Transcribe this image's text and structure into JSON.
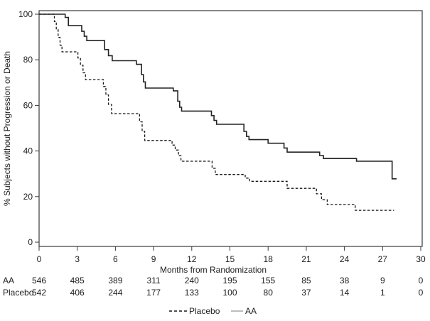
{
  "colors": {
    "aa_curve": "#232323",
    "placebo_curve": "#161616",
    "legend_solid_sample": "#a8a8a8",
    "frame": "#3a3a3a",
    "text": "#1d1d1d"
  },
  "legend": {
    "items": [
      {
        "label": "Placebo",
        "style": "dashed"
      },
      {
        "label": "AA",
        "style": "solid"
      }
    ]
  },
  "chart_data": {
    "type": "line",
    "subtype": "kaplan-meier-step",
    "title": "",
    "xlabel": "Months from Randomization",
    "ylabel": "% Subjects without Progression or Death",
    "xlim": [
      0,
      30
    ],
    "ylim": [
      0,
      100
    ],
    "x_ticks": [
      0,
      3,
      6,
      9,
      12,
      15,
      18,
      21,
      24,
      27,
      30
    ],
    "y_ticks": [
      0,
      20,
      40,
      60,
      80,
      100
    ],
    "grid": false,
    "legend_position": "bottom-center",
    "series": [
      {
        "name": "AA",
        "style": "solid",
        "end_month": 28.1,
        "steps": [
          [
            0,
            100
          ],
          [
            2.05,
            98.6
          ],
          [
            2.3,
            95.0
          ],
          [
            3.35,
            92.5
          ],
          [
            3.55,
            90.3
          ],
          [
            3.75,
            88.4
          ],
          [
            5.15,
            84.5
          ],
          [
            5.45,
            81.8
          ],
          [
            5.75,
            79.6
          ],
          [
            7.65,
            78.0
          ],
          [
            8.05,
            73.5
          ],
          [
            8.2,
            70.3
          ],
          [
            8.35,
            67.6
          ],
          [
            10.55,
            66.4
          ],
          [
            10.9,
            61.8
          ],
          [
            11.05,
            59.2
          ],
          [
            11.2,
            57.5
          ],
          [
            13.55,
            55.5
          ],
          [
            13.75,
            53.4
          ],
          [
            13.95,
            51.7
          ],
          [
            16.1,
            48.6
          ],
          [
            16.3,
            46.4
          ],
          [
            16.5,
            45.0
          ],
          [
            18.0,
            43.4
          ],
          [
            19.25,
            41.3
          ],
          [
            19.5,
            39.5
          ],
          [
            22.05,
            38.0
          ],
          [
            22.35,
            36.7
          ],
          [
            24.95,
            35.5
          ],
          [
            27.75,
            27.8
          ]
        ]
      },
      {
        "name": "Placebo",
        "style": "dashed",
        "end_month": 27.9,
        "steps": [
          [
            0,
            100
          ],
          [
            1.2,
            96.8
          ],
          [
            1.35,
            93.2
          ],
          [
            1.5,
            89.8
          ],
          [
            1.65,
            86.4
          ],
          [
            1.8,
            83.5
          ],
          [
            3.05,
            80.8
          ],
          [
            3.25,
            77.6
          ],
          [
            3.45,
            74.3
          ],
          [
            3.65,
            71.3
          ],
          [
            5.05,
            68.3
          ],
          [
            5.25,
            64.6
          ],
          [
            5.45,
            60.4
          ],
          [
            5.7,
            56.4
          ],
          [
            7.9,
            52.8
          ],
          [
            8.1,
            48.6
          ],
          [
            8.3,
            44.6
          ],
          [
            10.45,
            42.6
          ],
          [
            10.7,
            40.4
          ],
          [
            10.95,
            37.9
          ],
          [
            11.15,
            35.5
          ],
          [
            13.6,
            32.4
          ],
          [
            13.85,
            29.7
          ],
          [
            16.2,
            28.1
          ],
          [
            16.55,
            26.7
          ],
          [
            19.5,
            23.6
          ],
          [
            21.8,
            21.2
          ],
          [
            22.2,
            18.6
          ],
          [
            22.65,
            16.5
          ],
          [
            24.85,
            14.0
          ]
        ]
      }
    ],
    "risk_table": {
      "months": [
        0,
        3,
        6,
        9,
        12,
        15,
        18,
        21,
        24,
        27,
        30
      ],
      "rows": [
        {
          "label": "AA",
          "counts": [
            546,
            485,
            389,
            311,
            240,
            195,
            155,
            85,
            38,
            9,
            0
          ]
        },
        {
          "label": "Placebo",
          "counts": [
            542,
            406,
            244,
            177,
            133,
            100,
            80,
            37,
            14,
            1,
            0
          ]
        }
      ]
    }
  }
}
